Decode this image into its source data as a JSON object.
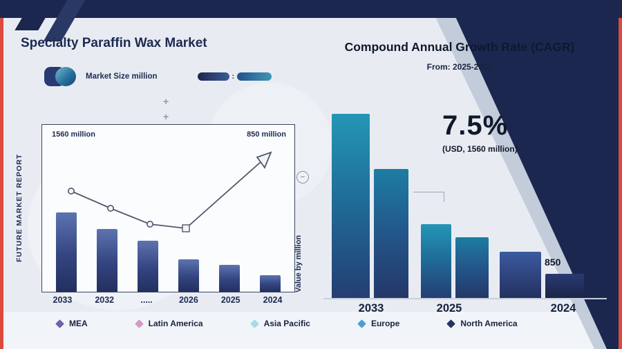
{
  "colors": {
    "background": "#e8ecf2",
    "navy": "#1c2750",
    "teal": "#1f84a8",
    "accent_red": "#dd4a3c"
  },
  "left_panel": {
    "title": "Specialty Paraffin Wax Market",
    "legend_label": "Market Size million",
    "side_label": "FUTURE MARKET REPORT",
    "value_start": "1560 million",
    "value_end": "850 million"
  },
  "right_panel": {
    "title": "Compound Annual Growth Rate (CAGR)",
    "subtitle": "From: 2025-2033",
    "cagr_value": "7.5%",
    "cagr_note": "(USD, 1560 million)",
    "axis_label": "Value by million",
    "annotation_850": "850"
  },
  "legend": {
    "items": [
      {
        "label": "MEA",
        "color": "#6e5fa8"
      },
      {
        "label": "Latin America",
        "color": "#d49ac2"
      },
      {
        "label": "Asia Pacific",
        "color": "#a6d9ea"
      },
      {
        "label": "Europe",
        "color": "#4d9fd1"
      },
      {
        "label": "North America",
        "color": "#283360"
      }
    ]
  },
  "decor": {
    "plus": "+",
    "colon": ":",
    "minus": "−"
  },
  "chart_data": [
    {
      "type": "bar",
      "title": "Specialty Paraffin Wax Market",
      "legend": [
        "Market Size million"
      ],
      "ylabel": "FUTURE MARKET REPORT",
      "categories": [
        "2033",
        "2032",
        ".....",
        "2026",
        "2025",
        "2024"
      ],
      "values_pct": [
        100,
        79,
        64,
        41,
        34,
        21
      ],
      "value_labels": {
        "2033": "1560 million",
        "2024": "850 million"
      },
      "annotations": [
        "trend line with markers descending from 2033, then arrow rising toward 850 million"
      ]
    },
    {
      "type": "bar",
      "title": "Compound Annual Growth Rate (CAGR)",
      "subtitle": "From: 2025-2033",
      "ylabel": "Value by million",
      "categories": [
        "2033",
        "2025",
        "2024"
      ],
      "series": [
        {
          "name": "bar-primary",
          "values_pct": [
            100,
            40,
            25
          ]
        },
        {
          "name": "bar-secondary",
          "values_pct": [
            70,
            33,
            13
          ]
        }
      ],
      "annotations": [
        "7.5% CAGR",
        "(USD, 1560 million)",
        "850 at 2024"
      ]
    }
  ]
}
